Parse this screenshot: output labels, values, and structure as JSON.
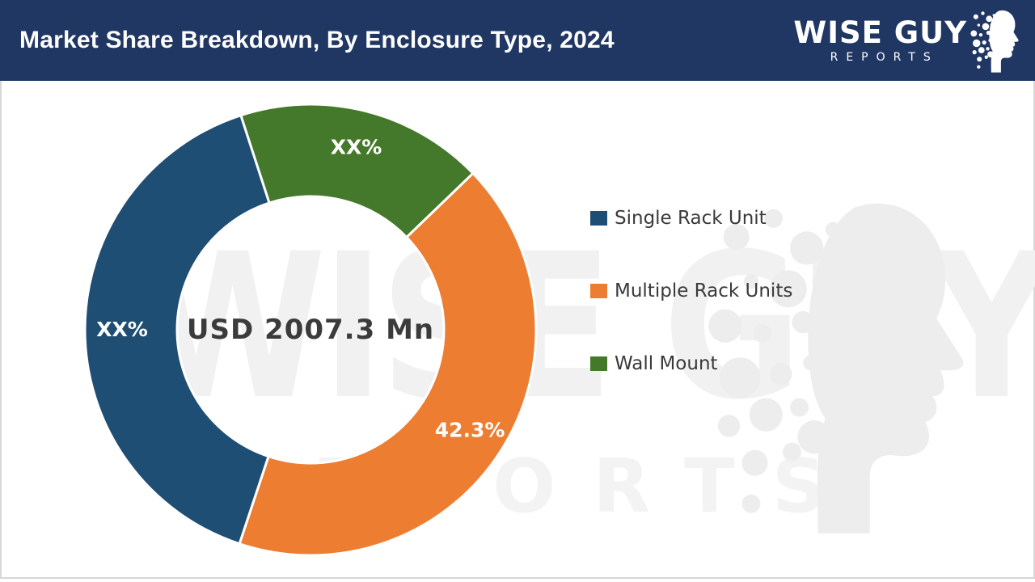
{
  "header": {
    "title": "Market Share Breakdown, By Enclosure Type, 2024",
    "bg_color": "#213763",
    "brand": {
      "line1": "WISE GUY",
      "line2": "REPORTS"
    }
  },
  "watermark": {
    "line1": "WISE GUY",
    "line2": "REPORTS"
  },
  "chart_data": {
    "type": "donut",
    "title": "Market Share Breakdown, By Enclosure Type, 2024",
    "center_label": "USD 2007.3 Mn",
    "start_angle_deg": -18,
    "legend_position": "right",
    "segments": [
      {
        "name": "Wall Mount",
        "display_label": "XX%",
        "value_pct": 17.8,
        "color": "#44782A"
      },
      {
        "name": "Multiple Rack Units",
        "display_label": "42.3%",
        "value_pct": 42.3,
        "color": "#ED7D31"
      },
      {
        "name": "Single Rack Unit",
        "display_label": "XX%",
        "value_pct": 39.9,
        "color": "#1F4E74"
      }
    ],
    "legend": [
      "Single Rack Unit",
      "Multiple Rack Units",
      "Wall Mount"
    ]
  }
}
